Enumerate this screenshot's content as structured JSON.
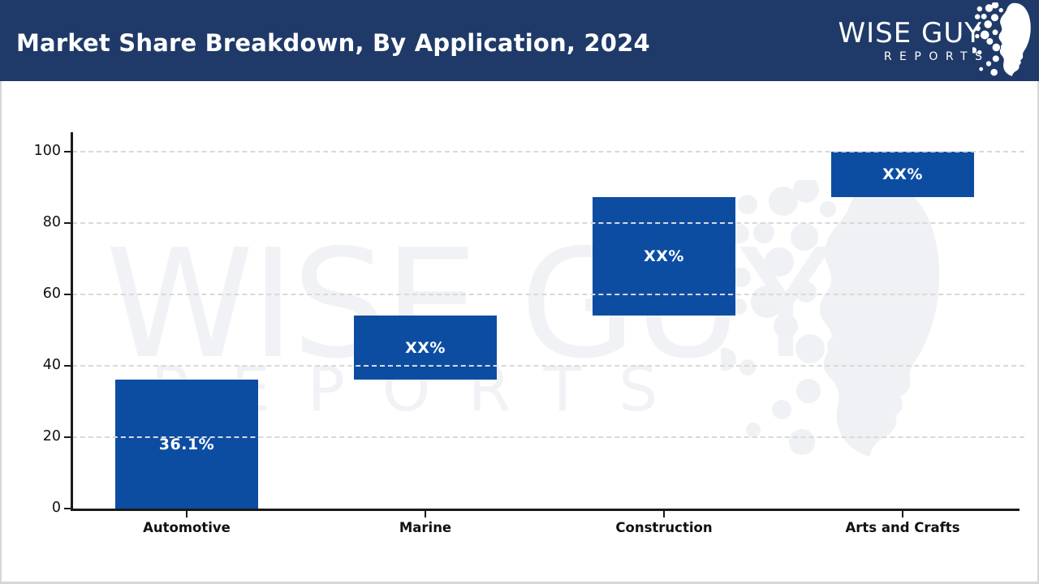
{
  "header": {
    "title": "Market Share Breakdown, By Application, 2024",
    "logo": {
      "line1": "WISE GUY",
      "line2": "REPORTS"
    }
  },
  "watermark": {
    "line1": "WISE GUY",
    "line2": "REPORTS"
  },
  "colors": {
    "header_bg": "#1f3a68",
    "bar_blue": "#0c4da2",
    "bar_label": "#ffffff",
    "watermark": "#f1f2f5",
    "gridline": "#d9d9d9",
    "axis": "#1a1a1a"
  },
  "chart_data": {
    "type": "bar",
    "subtype": "waterfall",
    "title": "Market Share Breakdown, By Application, 2024",
    "categories": [
      "Automotive",
      "Marine",
      "Construction",
      "Arts and Crafts"
    ],
    "segments": [
      {
        "category": "Automotive",
        "start": 0,
        "end": 36.1,
        "label": "36.1%"
      },
      {
        "category": "Marine",
        "start": 36.1,
        "end": 54,
        "label": "XX%"
      },
      {
        "category": "Construction",
        "start": 54,
        "end": 87.3,
        "label": "XX%"
      },
      {
        "category": "Arts and Crafts",
        "start": 87.3,
        "end": 100,
        "label": "XX%"
      }
    ],
    "y_ticks": [
      0,
      20,
      40,
      60,
      80,
      100
    ],
    "ylim": [
      0,
      105.5
    ],
    "xlabel": "",
    "ylabel": "",
    "grid": "horizontal-dashed",
    "gridlines_above_bars": true,
    "legend": "none",
    "bar_color": "#0c4da2",
    "bar_label_color": "#ffffff"
  }
}
